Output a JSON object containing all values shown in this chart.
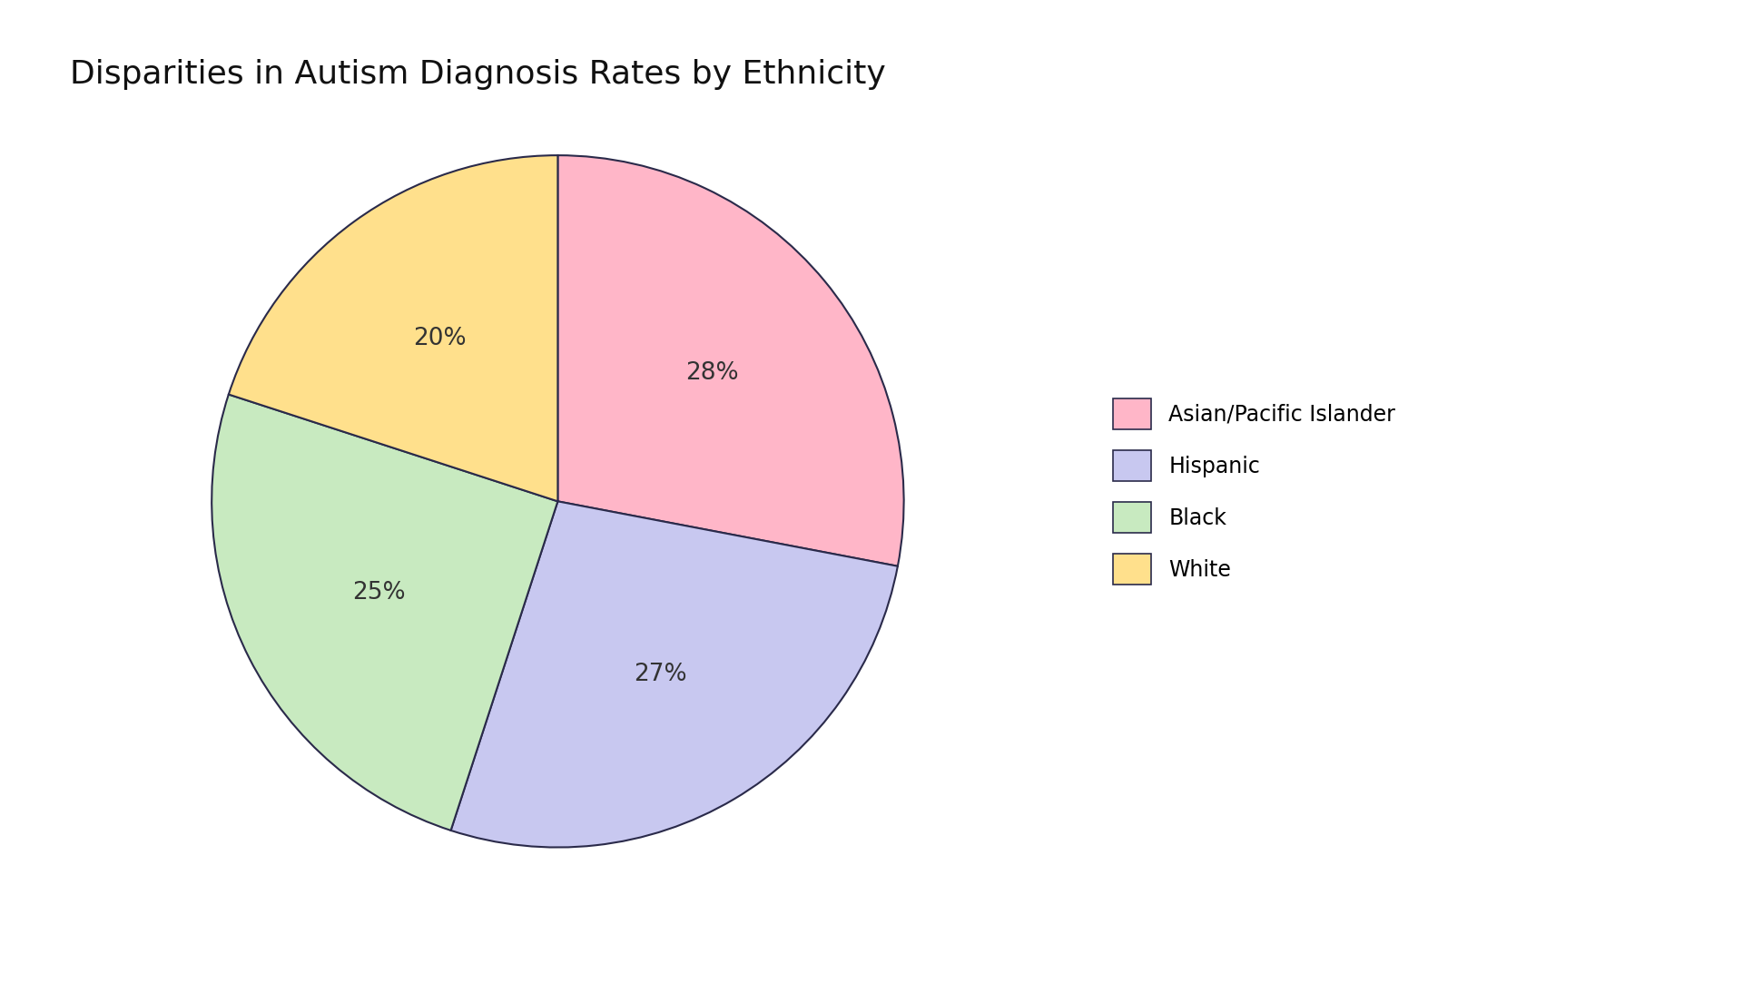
{
  "title": "Disparities in Autism Diagnosis Rates by Ethnicity",
  "labels": [
    "Asian/Pacific Islander",
    "Hispanic",
    "Black",
    "White"
  ],
  "values": [
    28,
    27,
    25,
    20
  ],
  "colors": [
    "#FFB6C8",
    "#C8C8F0",
    "#C8EAC0",
    "#FFE08C"
  ],
  "edgecolor": "#2a2a4a",
  "pct_labels": [
    "28%",
    "27%",
    "25%",
    "20%"
  ],
  "startangle": 90,
  "title_fontsize": 26,
  "legend_fontsize": 17,
  "pct_fontsize": 19,
  "background_color": "#ffffff"
}
